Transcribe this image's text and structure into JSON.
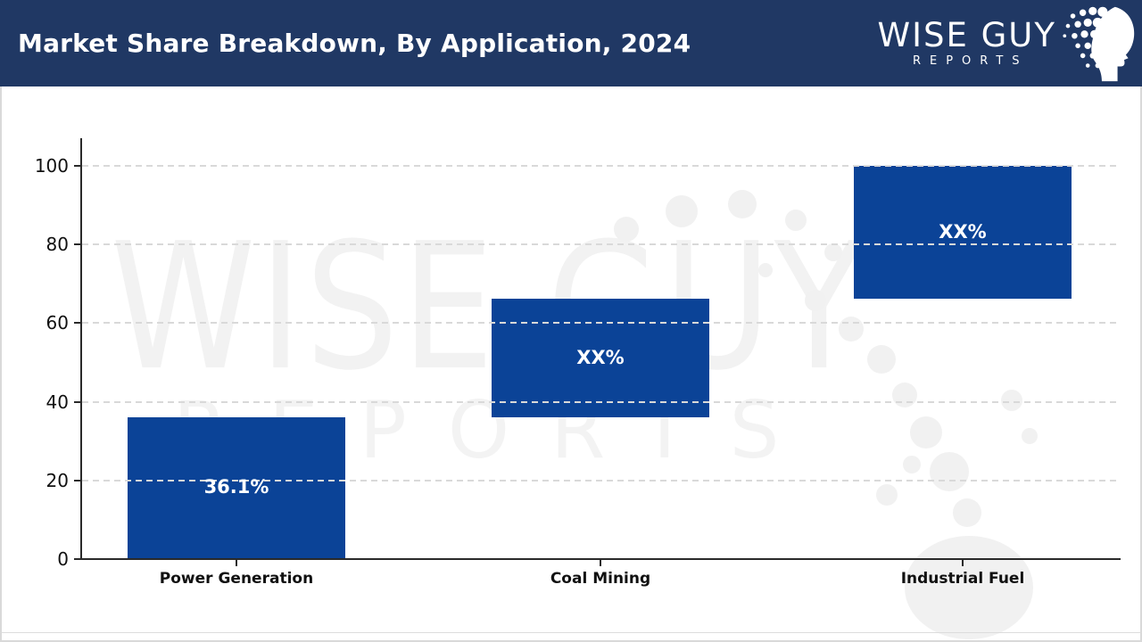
{
  "header": {
    "title": "Market Share Breakdown, By Application, 2024",
    "logo_line1": "WISE GUY",
    "logo_line2": "REPORTS"
  },
  "watermark": {
    "line1": "WISE GUY",
    "line2": "REPORTS"
  },
  "colors": {
    "header_bg": "#203864",
    "bar": "#0b4397",
    "bar_label": "#ffffff",
    "grid": "#d9d9d9",
    "axis": "#2a2a2a"
  },
  "chart_data": {
    "type": "bar",
    "variant": "waterfall",
    "title": "Market Share Breakdown, By Application, 2024",
    "categories": [
      "Power Generation",
      "Coal Mining",
      "Industrial Fuel"
    ],
    "segments": [
      {
        "category": "Power Generation",
        "start": 0,
        "end": 36.1,
        "label": "36.1%"
      },
      {
        "category": "Coal Mining",
        "start": 36.1,
        "end": 66.1,
        "label": "XX%"
      },
      {
        "category": "Industrial Fuel",
        "start": 66.1,
        "end": 100,
        "label": "XX%"
      }
    ],
    "xlabel": "",
    "ylabel": "",
    "yticks": [
      0,
      20,
      40,
      60,
      80,
      100
    ],
    "ylim": [
      0,
      107
    ],
    "grid": "horizontal-dashed",
    "legend": "none",
    "bar_color": "#0b4397",
    "watermark_text": "WISE GUY REPORTS"
  }
}
